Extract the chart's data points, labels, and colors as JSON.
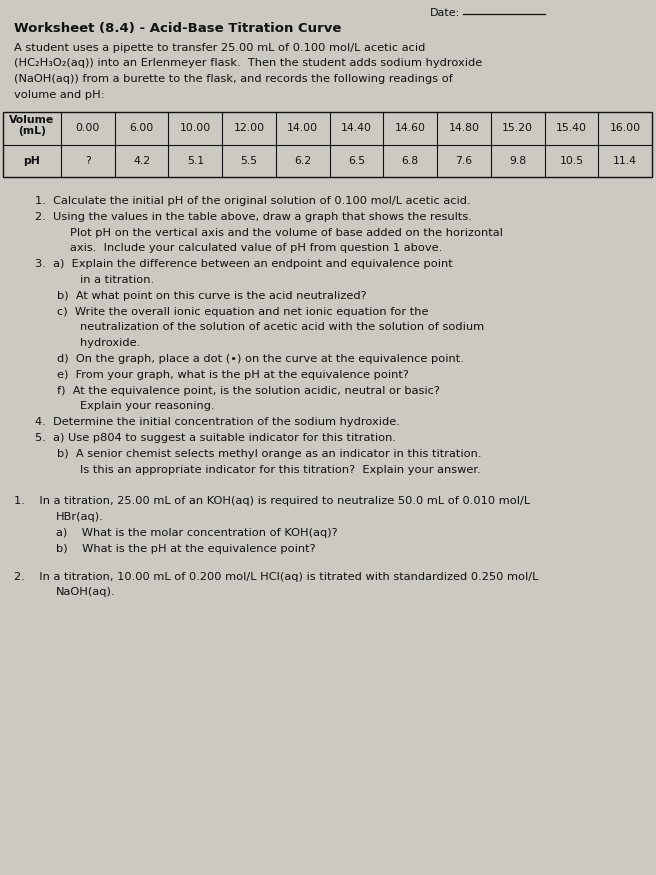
{
  "title": "Worksheet (8.4) - Acid-Base Titration Curve",
  "bg_color": "#ccc8c2",
  "text_color": "#111111",
  "table_border_color": "#111111",
  "font_size_title": 9.5,
  "font_size_body": 8.2,
  "font_size_table": 7.8,
  "table_volumes": [
    "0.00",
    "6.00",
    "10.00",
    "12.00",
    "14.00",
    "14.40",
    "14.60",
    "14.80",
    "15.20",
    "15.40",
    "16.00"
  ],
  "table_ph": [
    "?",
    "4.2",
    "5.1",
    "5.5",
    "6.2",
    "6.5",
    "6.8",
    "7.6",
    "9.8",
    "10.5",
    "11.4"
  ]
}
